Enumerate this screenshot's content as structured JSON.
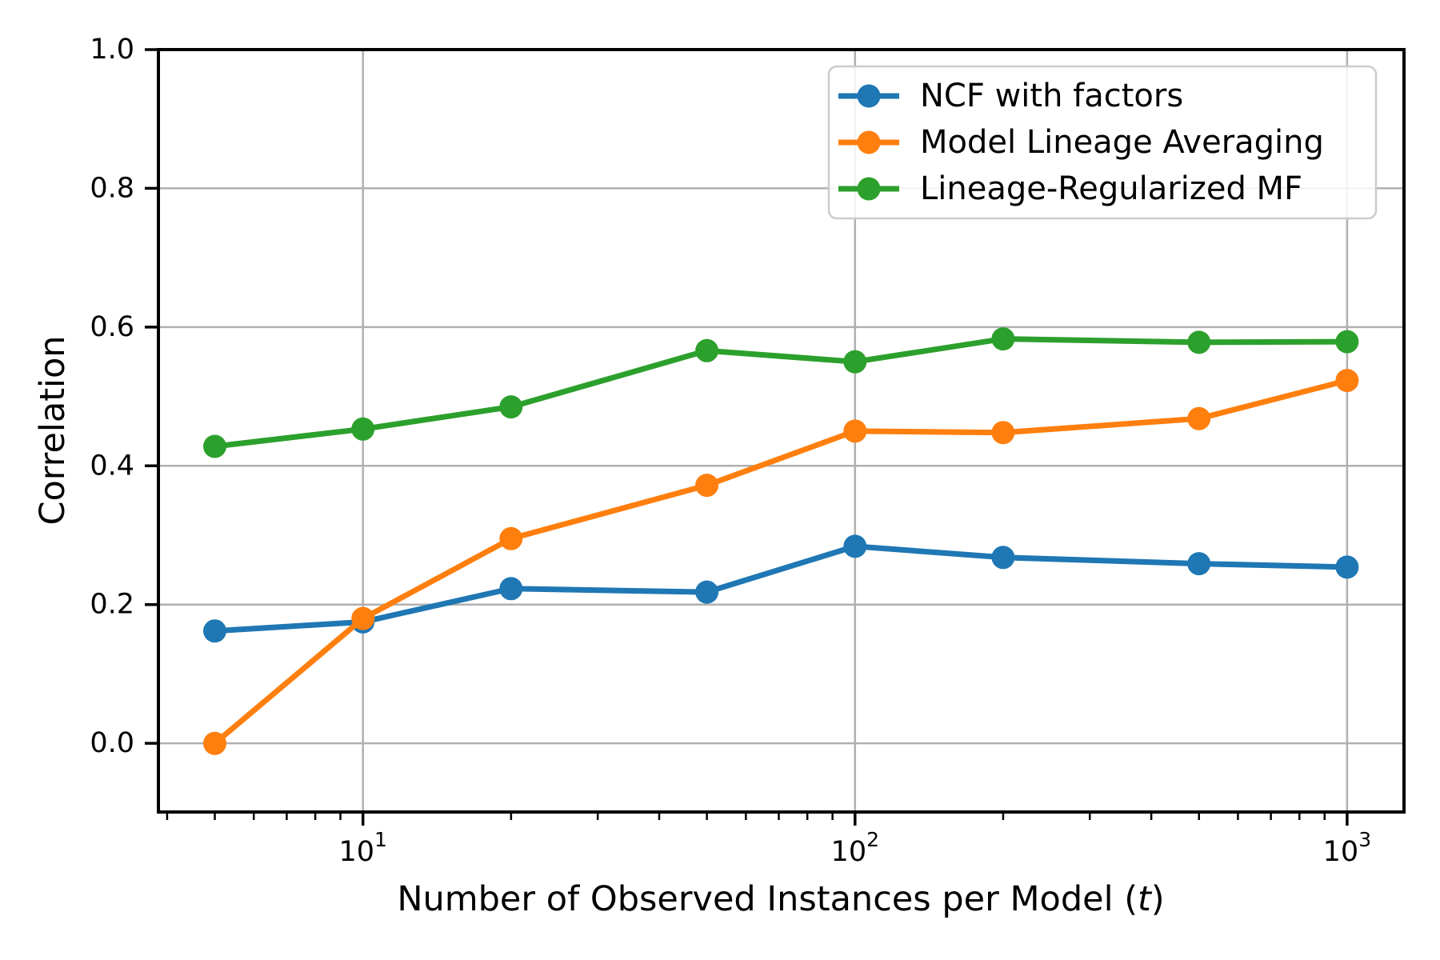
{
  "chart_data": {
    "type": "line",
    "title": "",
    "xlabel": "Number of Observed Instances per Model (t)",
    "xlabel_parts": {
      "before": "Number of Observed Instances per Model (",
      "italic": "t",
      "after": ")"
    },
    "ylabel": "Correlation",
    "xscale": "log",
    "yscale": "linear",
    "grid": true,
    "legend_position": "upper right",
    "xlim": [
      3.84,
      1305
    ],
    "ylim": [
      -0.099,
      1.0
    ],
    "x": [
      5,
      10,
      20,
      50,
      100,
      200,
      500,
      1000
    ],
    "xticks": [
      10,
      100,
      1000
    ],
    "xtick_labels": [
      {
        "base": "10",
        "exp": "1"
      },
      {
        "base": "10",
        "exp": "2"
      },
      {
        "base": "10",
        "exp": "3"
      }
    ],
    "minor_xticks": [
      4,
      5,
      6,
      7,
      8,
      9,
      20,
      30,
      40,
      50,
      60,
      70,
      80,
      90,
      200,
      300,
      400,
      500,
      600,
      700,
      800,
      900
    ],
    "yticks": [
      0.0,
      0.2,
      0.4,
      0.6,
      0.8,
      1.0
    ],
    "ytick_labels": [
      "0.0",
      "0.2",
      "0.4",
      "0.6",
      "0.8",
      "1.0"
    ],
    "series": [
      {
        "name": "NCF with factors",
        "color": "#1f77b4",
        "values": [
          0.162,
          0.175,
          0.223,
          0.218,
          0.284,
          0.268,
          0.259,
          0.254
        ]
      },
      {
        "name": "Model Lineage Averaging",
        "color": "#ff7f0e",
        "values": [
          0.0,
          0.18,
          0.295,
          0.372,
          0.45,
          0.448,
          0.468,
          0.523
        ]
      },
      {
        "name": "Lineage-Regularized MF",
        "color": "#2ca02c",
        "values": [
          0.428,
          0.453,
          0.485,
          0.566,
          0.55,
          0.583,
          0.578,
          0.579
        ]
      }
    ],
    "colors": {
      "grid": "#b0b0b0",
      "axis": "#000000",
      "legend_border": "#cccccc",
      "background": "#ffffff"
    }
  }
}
